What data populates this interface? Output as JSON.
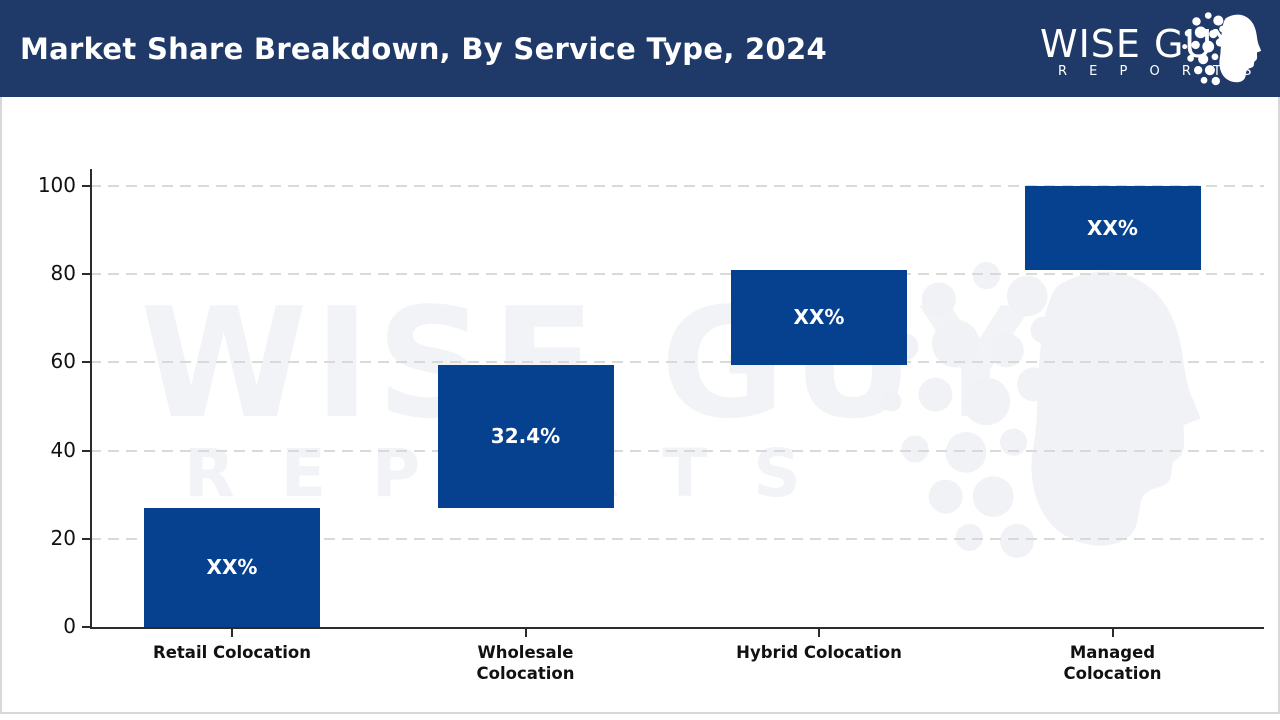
{
  "header": {
    "title": "Market Share Breakdown, By Service Type, 2024",
    "logo": {
      "wordmark": "WISE GUY",
      "sub": "R E P O R T S"
    }
  },
  "watermark": {
    "line1": "WISE GUY",
    "line2": "REPORTS"
  },
  "colors": {
    "header_bg": "#1f3a68",
    "bar_blue": "#05418f",
    "gridline": "#d9d9d9",
    "watermark_gray": "#f2f3f6"
  },
  "chart_data": {
    "type": "bar",
    "subtype": "floating-segment-waterfall",
    "title": "Market Share Breakdown, By Service Type, 2024",
    "categories": [
      "Retail Colocation",
      "Wholesale Colocation",
      "Hybrid Colocation",
      "Managed Colocation"
    ],
    "xtick_labels": [
      "Retail Colocation",
      "Wholesale\nColocation",
      "Hybrid Colocation",
      "Managed Colocation"
    ],
    "segments": [
      {
        "category": "Retail Colocation",
        "start": 0,
        "end": 27,
        "value_label": "XX%"
      },
      {
        "category": "Wholesale Colocation",
        "start": 27,
        "end": 59.4,
        "value_label": "32.4%"
      },
      {
        "category": "Hybrid Colocation",
        "start": 59.4,
        "end": 81,
        "value_label": "XX%"
      },
      {
        "category": "Managed Colocation",
        "start": 81,
        "end": 100,
        "value_label": "XX%"
      }
    ],
    "yticks": [
      0,
      20,
      40,
      60,
      80,
      100
    ],
    "ylim": [
      0,
      105
    ],
    "ylabel": "",
    "xlabel": "",
    "grid": "horizontal-dashed",
    "legend_position": "none",
    "bar_color": "#05418f",
    "value_label_color": "#ffffff"
  }
}
